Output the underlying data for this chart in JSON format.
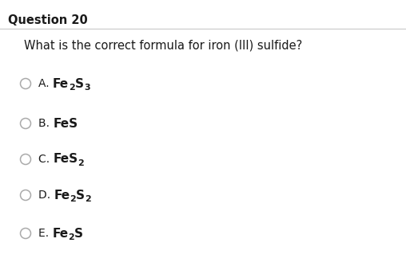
{
  "title": "Question 20",
  "question": "What is the correct formula for iron (III) sulfide?",
  "bg_color": "#ffffff",
  "text_color": "#1a1a1a",
  "title_fontsize": 10.5,
  "question_fontsize": 10.5,
  "option_label_fontsize": 10,
  "formula_fontsize": 11,
  "subscript_fontsize": 8,
  "circle_color": "#aaaaaa",
  "line_color": "#cccccc",
  "options": [
    {
      "label": "A. ",
      "parts": [
        [
          "Fe",
          false
        ],
        [
          "2",
          true
        ],
        [
          "S",
          false
        ],
        [
          "3",
          true
        ]
      ]
    },
    {
      "label": "B. ",
      "parts": [
        [
          "FeS",
          false
        ]
      ]
    },
    {
      "label": "C. ",
      "parts": [
        [
          "FeS",
          false
        ],
        [
          "2",
          true
        ]
      ]
    },
    {
      "label": "D. ",
      "parts": [
        [
          "Fe",
          false
        ],
        [
          "2",
          true
        ],
        [
          "S",
          false
        ],
        [
          "2",
          true
        ]
      ]
    },
    {
      "label": "E. ",
      "parts": [
        [
          "Fe",
          false
        ],
        [
          "2",
          true
        ],
        [
          "S",
          false
        ]
      ]
    }
  ]
}
